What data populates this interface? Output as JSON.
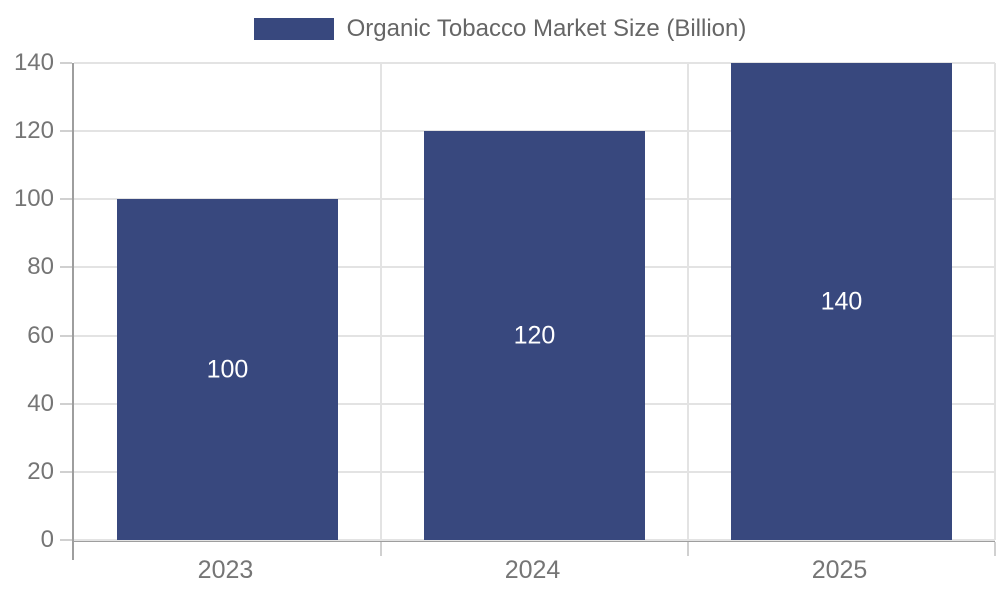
{
  "chart_data": {
    "type": "bar",
    "title": "Organic Tobacco Market Size (Billion)",
    "legend": {
      "label": "Organic Tobacco Market Size (Billion)",
      "position": "top-center"
    },
    "categories": [
      "2023",
      "2024",
      "2025"
    ],
    "values": [
      100,
      120,
      140
    ],
    "bar_labels": [
      "100",
      "120",
      "140"
    ],
    "xlabel": "",
    "ylabel": "",
    "ylim": [
      0,
      140
    ],
    "ytick_step": 20,
    "yticks": [
      0,
      20,
      40,
      60,
      80,
      100,
      120,
      140
    ],
    "grid": true,
    "bar_width_fraction": 0.717,
    "colors": {
      "bar": "#38487e",
      "bar_label": "#ffffff",
      "axis_label": "#757575",
      "legend_text": "#666666",
      "gridline": "#e3e3e3",
      "tick": "#d0d0d0",
      "axis_line": "#9e9e9e",
      "background": "#ffffff"
    }
  }
}
